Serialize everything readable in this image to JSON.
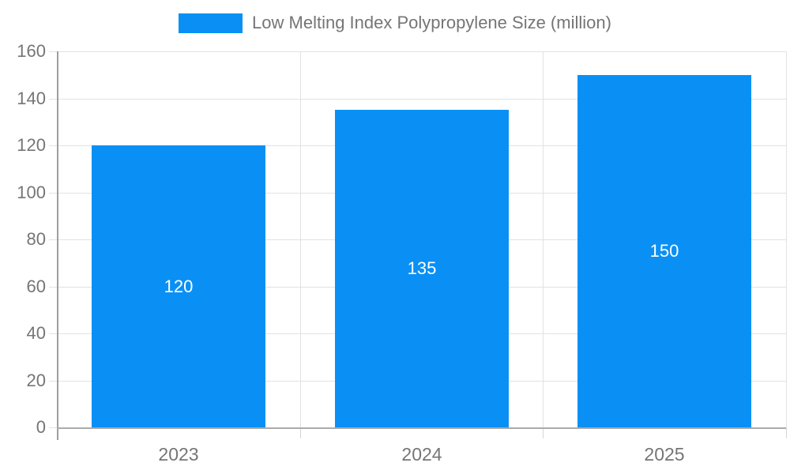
{
  "chart_data": {
    "type": "bar",
    "title": "",
    "legend": {
      "label": "Low Melting Index Polypropylene Size (million)",
      "position": "top"
    },
    "categories": [
      "2023",
      "2024",
      "2025"
    ],
    "series": [
      {
        "name": "Low Melting Index Polypropylene Size (million)",
        "values": [
          120,
          135,
          150
        ]
      }
    ],
    "bar_value_labels": [
      "120",
      "135",
      "150"
    ],
    "ylim": [
      0,
      160
    ],
    "ytick_step": 20,
    "ytick_labels": [
      "0",
      "20",
      "40",
      "60",
      "80",
      "100",
      "120",
      "140",
      "160"
    ],
    "grid": true,
    "colors": {
      "bar": "#0a90f5",
      "bar_label_text": "#ffffff",
      "axis_line": "#9e9e9e",
      "gridline": "#e2e2e2",
      "tick_text": "#757575",
      "legend_text": "#757575",
      "background": "#ffffff"
    }
  }
}
